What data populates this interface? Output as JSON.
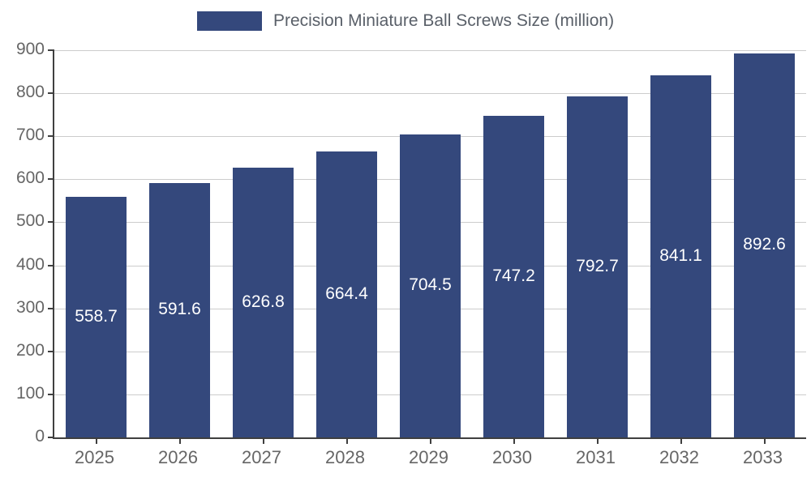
{
  "chart_data": {
    "type": "bar",
    "title": "Precision Miniature Ball Screws Size (million)",
    "categories": [
      "2025",
      "2026",
      "2027",
      "2028",
      "2029",
      "2030",
      "2031",
      "2032",
      "2033"
    ],
    "values": [
      558.7,
      591.6,
      626.8,
      664.4,
      704.5,
      747.2,
      792.7,
      841.1,
      892.6
    ],
    "xlabel": "",
    "ylabel": "",
    "ylim": [
      0,
      900
    ],
    "ytick_interval": 100,
    "grid": true,
    "legend_position": "top",
    "colors": {
      "bar": "#34487c",
      "value_label": "#ffffff",
      "gridline": "#cccccc",
      "axis": "#3f3f3f",
      "tick_label": "#666666",
      "legend_text": "#5a6069"
    }
  }
}
